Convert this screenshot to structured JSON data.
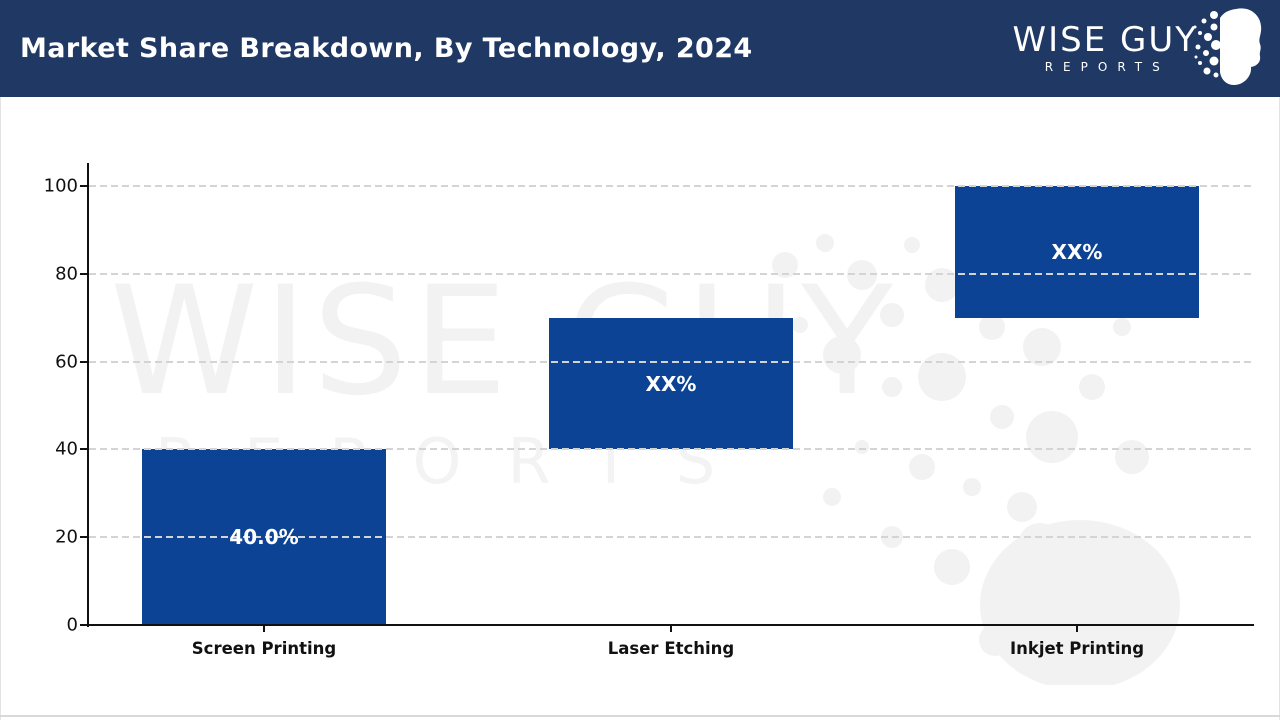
{
  "header": {
    "title": "Market Share Breakdown, By Technology, 2024",
    "logo": {
      "line1": "WISE GUY",
      "line2": "REPORTS"
    }
  },
  "watermark": {
    "line1": "WISE GUY",
    "line2": "REPORTS"
  },
  "chart_data": {
    "type": "bar",
    "variant": "floating-waterfall",
    "title": "Market Share Breakdown, By Technology, 2024",
    "categories": [
      "Screen Printing",
      "Laser Etching",
      "Inkjet Printing"
    ],
    "bars": [
      {
        "category": "Screen Printing",
        "start": 0,
        "end": 40,
        "label": "40.0%"
      },
      {
        "category": "Laser Etching",
        "start": 40,
        "end": 70,
        "label": "XX%"
      },
      {
        "category": "Inkjet Printing",
        "start": 70,
        "end": 100,
        "label": "XX%"
      }
    ],
    "yticks": [
      0,
      20,
      40,
      60,
      80,
      100
    ],
    "ylim": [
      0,
      105
    ],
    "xlabel": "",
    "ylabel": "",
    "legend": "none",
    "grid": "horizontal dashed lines drawn above bars"
  },
  "colors": {
    "header_bg": "#1f3864",
    "bar": "#0c4394",
    "bar_label": "#ffffff",
    "grid": "#d4d4d4",
    "axis": "#111111",
    "watermark": "#f2f2f2",
    "footer_line": "#d9d9d9"
  }
}
